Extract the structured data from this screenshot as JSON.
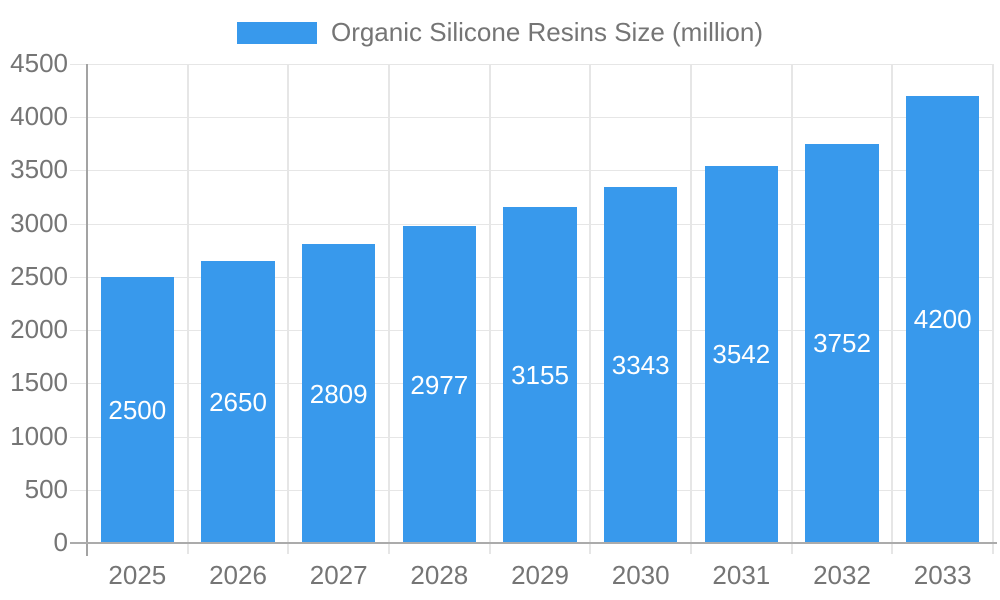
{
  "legend": {
    "label": "Organic Silicone Resins Size (million)",
    "swatch_color": "#3899ec"
  },
  "chart_data": {
    "type": "bar",
    "title": "Organic Silicone Resins Size (million)",
    "categories": [
      "2025",
      "2026",
      "2027",
      "2028",
      "2029",
      "2030",
      "2031",
      "2032",
      "2033"
    ],
    "values": [
      2500,
      2650,
      2809,
      2977,
      3155,
      3343,
      3542,
      3752,
      4200
    ],
    "xlabel": "",
    "ylabel": "",
    "ylim": [
      0,
      4500
    ],
    "y_ticks": [
      0,
      500,
      1000,
      1500,
      2000,
      2500,
      3000,
      3500,
      4000,
      4500
    ],
    "value_labels_position": "inside-center",
    "legend_position": "top-center",
    "grid": "horizontal and vertical boundaries",
    "colors": {
      "bar": "#3899ec",
      "value_label": "#ffffff",
      "text": "#757575",
      "gridline": "#e6e6e6",
      "axis": "#ababab"
    }
  }
}
